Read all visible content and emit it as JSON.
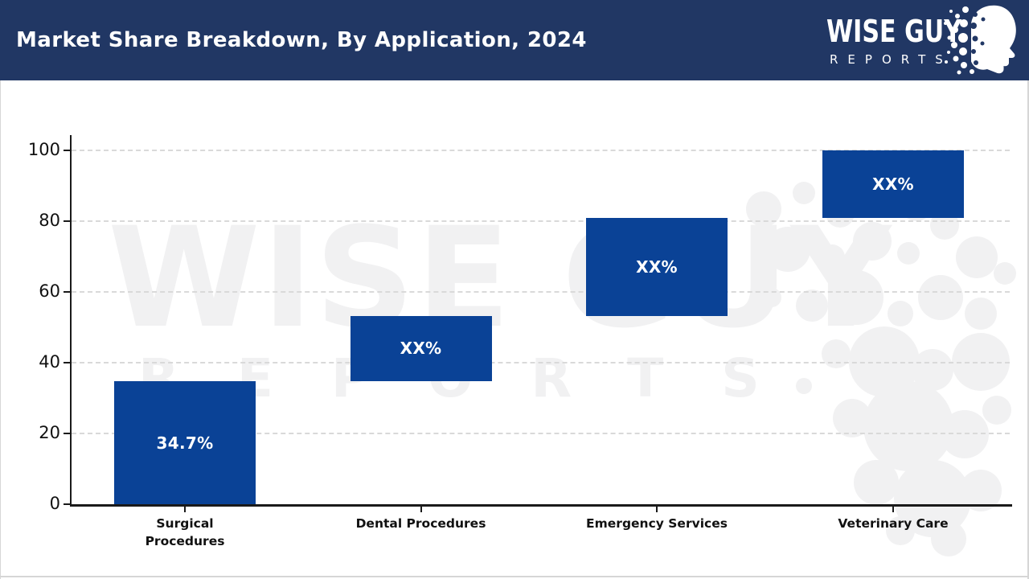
{
  "header": {
    "title": "Market Share Breakdown, By Application, 2024",
    "logo": {
      "line1": "WISE GUY",
      "line2": "REPORTS"
    }
  },
  "watermark": {
    "line1": "WISE GUY",
    "line2": "REPORTS"
  },
  "chart_data": {
    "type": "bar",
    "subtype": "waterfall",
    "title": "Market Share Breakdown, By Application, 2024",
    "categories": [
      "Surgical\nProcedures",
      "Dental Procedures",
      "Emergency Services",
      "Veterinary Care"
    ],
    "segments": [
      {
        "category": "Surgical Procedures",
        "start": 0,
        "end": 34.7,
        "label": "34.7%"
      },
      {
        "category": "Dental Procedures",
        "start": 34.7,
        "end": 53.2,
        "label": "XX%"
      },
      {
        "category": "Emergency Services",
        "start": 53.2,
        "end": 80.8,
        "label": "XX%"
      },
      {
        "category": "Veterinary Care",
        "start": 80.8,
        "end": 100,
        "label": "XX%"
      }
    ],
    "y_ticks": [
      0,
      20,
      40,
      60,
      80,
      100
    ],
    "ylim": [
      0,
      104
    ],
    "xlabel": "",
    "ylabel": "",
    "grid": "horizontal-dashed",
    "legend": "none"
  },
  "colors": {
    "header_bg": "#213764",
    "bar": "#0a4296",
    "grid": "#d9d9d9",
    "axis": "#1a1a1a",
    "text": "#111111",
    "bar_label": "#ffffff",
    "watermark": "#f1f1f2",
    "border": "#d6d6d6"
  }
}
